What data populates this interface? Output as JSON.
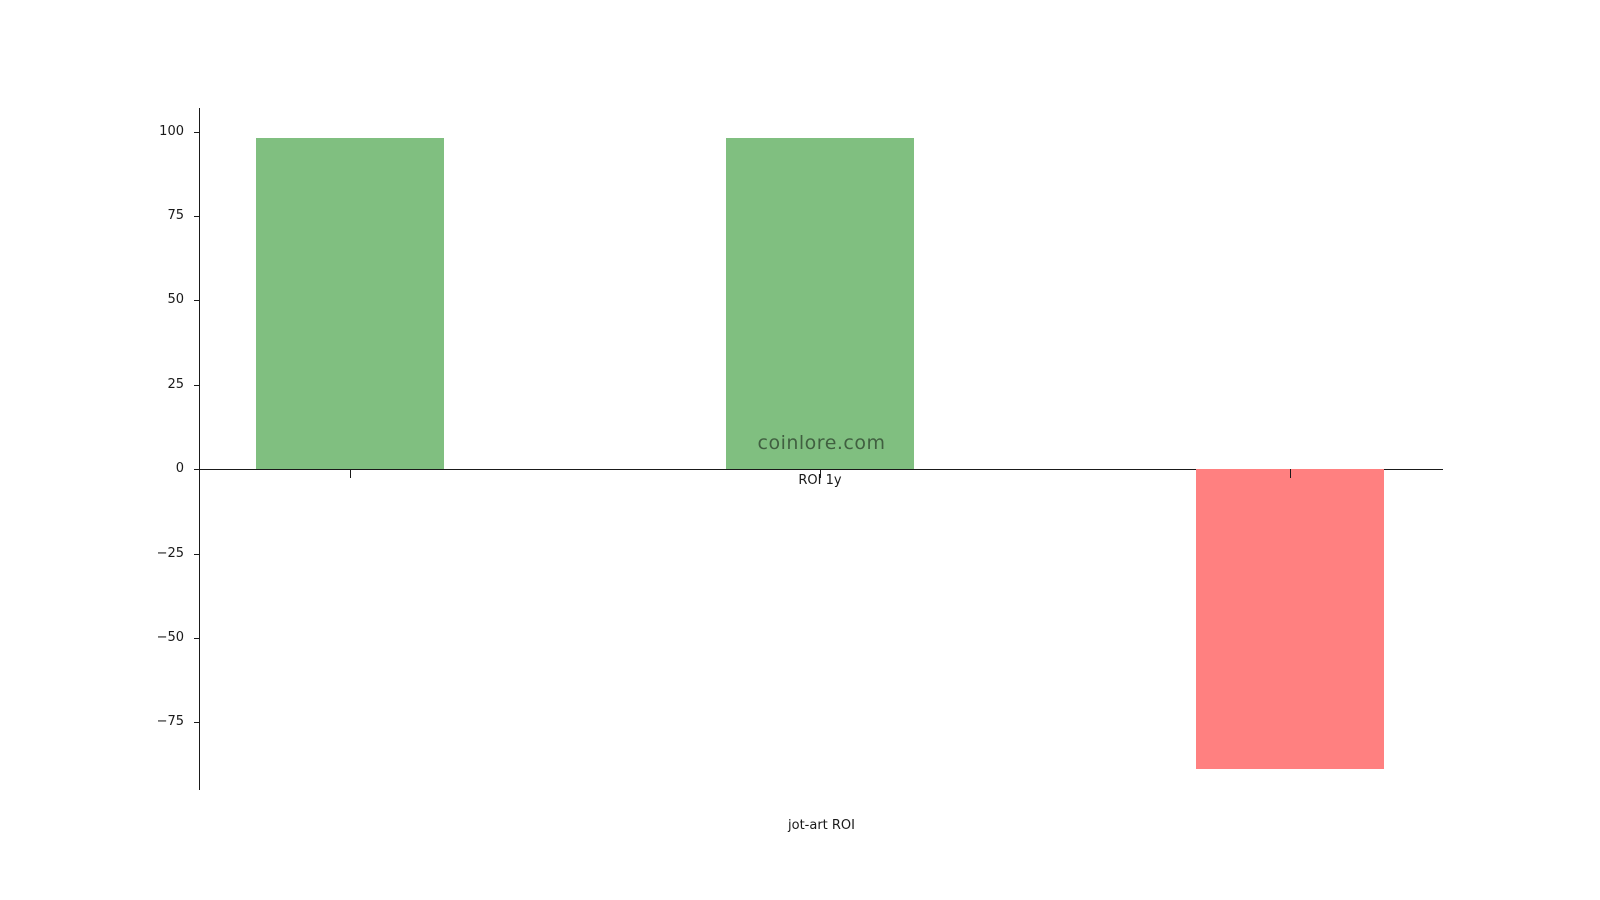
{
  "chart_data": {
    "type": "bar",
    "title": "jot-art ROI",
    "watermark": "coinlore.com",
    "categories": [
      "",
      "ROI 1y",
      ""
    ],
    "values": [
      98,
      98,
      -88.7
    ],
    "series": [
      {
        "name": "ROI",
        "values": [
          98,
          98,
          -88.7
        ]
      }
    ],
    "xlabel": "",
    "ylabel": "",
    "yticks": [
      100,
      75,
      50,
      25,
      0,
      -25,
      -50,
      -75
    ],
    "ylim": [
      -95,
      107
    ],
    "grid": false,
    "legend_position": "none",
    "positive_color": "#80bf80",
    "negative_color": "#ff8080",
    "axis_color": "#1a1a1a",
    "text_color": "#1a1a1a",
    "watermark_color": "rgba(0,0,0,0.5)"
  }
}
